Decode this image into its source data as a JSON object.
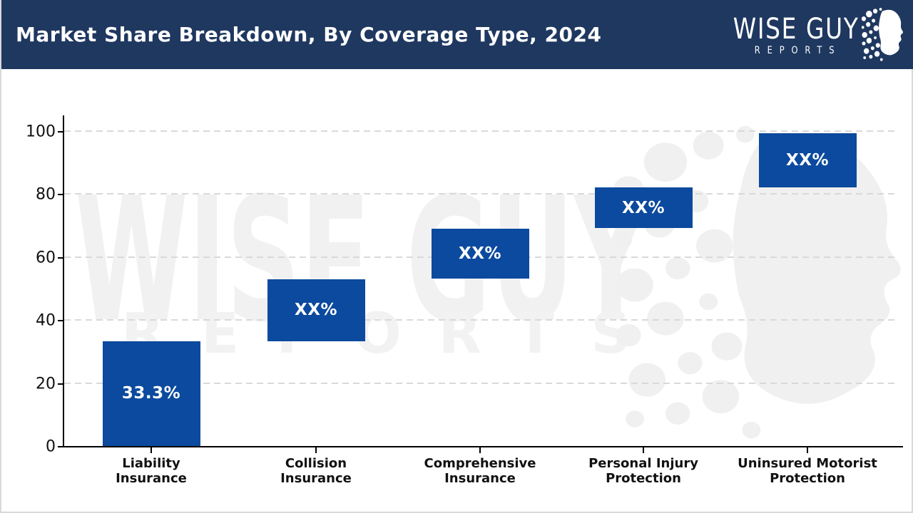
{
  "page": {
    "bg_color": "#ffffff",
    "border_color": "#d9d9d9"
  },
  "header": {
    "title": "Market Share Breakdown, By Coverage Type, 2024",
    "bg_color": "#1f3860",
    "logo": {
      "line1": "WISE GUY",
      "line2": "REPORTS"
    }
  },
  "watermark": {
    "line1": "WISE GUY",
    "line2": "REPORTS"
  },
  "chart_data": {
    "type": "bar",
    "subtype": "floating-waterfall",
    "title": "Market Share Breakdown, By Coverage Type, 2024",
    "categories": [
      "Liability Insurance",
      "Collision Insurance",
      "Comprehensive Insurance",
      "Personal Injury Protection",
      "Uninsured Motorist Protection"
    ],
    "category_lines": [
      [
        "Liability",
        "Insurance"
      ],
      [
        "Collision",
        "Insurance"
      ],
      [
        "Comprehensive",
        "Insurance"
      ],
      [
        "Personal Injury",
        "Protection"
      ],
      [
        "Uninsured Motorist",
        "Protection"
      ]
    ],
    "series": [
      {
        "name": "Market share (%)",
        "segments": [
          {
            "category": "Liability Insurance",
            "start": 0,
            "end": 33.3,
            "label": "33.3%"
          },
          {
            "category": "Collision Insurance",
            "start": 33.3,
            "end": 52.9,
            "label": "XX%"
          },
          {
            "category": "Comprehensive Insurance",
            "start": 53.2,
            "end": 69.0,
            "label": "XX%"
          },
          {
            "category": "Personal Injury Protection",
            "start": 69.2,
            "end": 82.1,
            "label": "XX%"
          },
          {
            "category": "Uninsured Motorist Protection",
            "start": 82.1,
            "end": 99.3,
            "label": "XX%"
          }
        ]
      }
    ],
    "yticks": [
      0,
      20,
      40,
      60,
      80,
      100
    ],
    "ylim": [
      0,
      105
    ],
    "xlabel": "",
    "ylabel": "",
    "grid": {
      "horizontal": true,
      "style": "dashed",
      "color": "#d9d9d9"
    },
    "legend": "none",
    "bar_color": "#0b4a9e",
    "bar_label_color": "#ffffff",
    "axis_color": "#000000"
  }
}
